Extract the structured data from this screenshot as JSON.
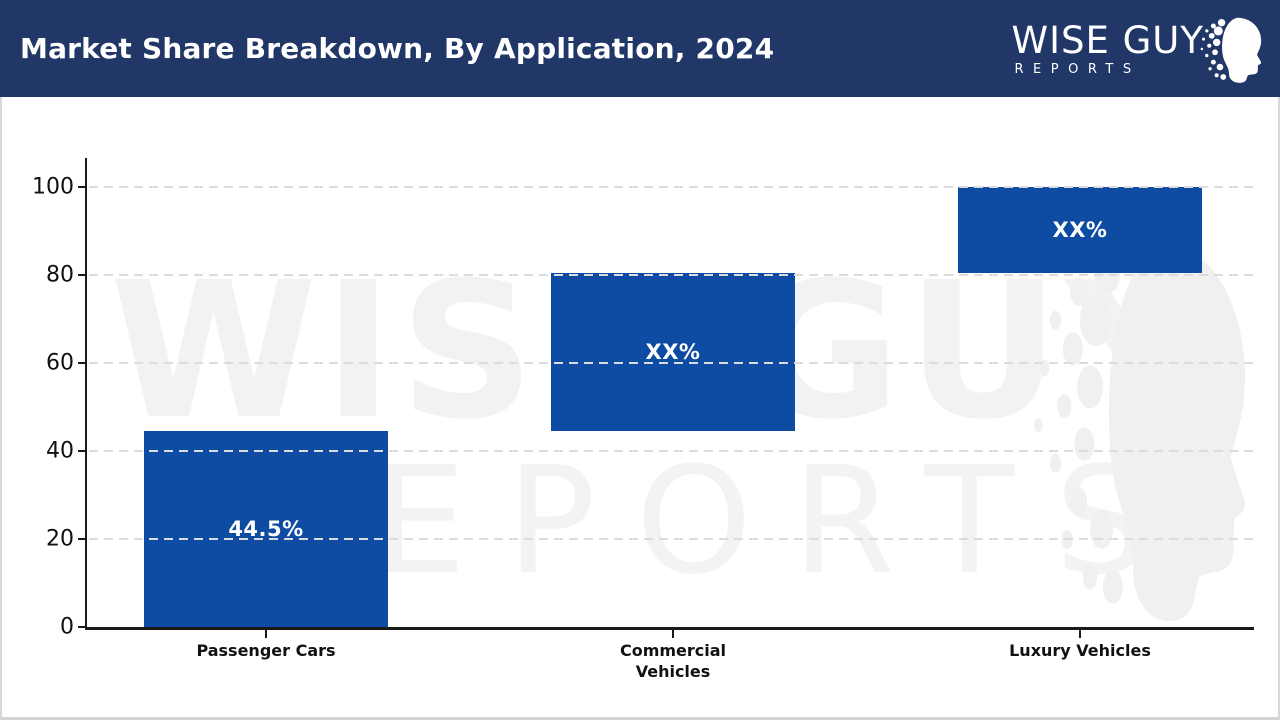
{
  "header": {
    "title": "Market Share Breakdown, By Application, 2024",
    "bg_color": "#203767",
    "logo": {
      "line1": "WISE GUY",
      "line2": "REPORTS"
    }
  },
  "watermark": {
    "line1": "WISE GUY",
    "line2": "REPORTS"
  },
  "chart_data": {
    "type": "bar",
    "subtype": "floating-segment-column",
    "title": "Market Share Breakdown, By Application, 2024",
    "categories": [
      "Passenger Cars",
      "Commercial\nVehicles",
      "Luxury Vehicles"
    ],
    "segments": [
      {
        "category": "Passenger Cars",
        "start": 0,
        "end": 44.5,
        "label": "44.5%"
      },
      {
        "category": "Commercial Vehicles",
        "start": 44.5,
        "end": 80.5,
        "label": "XX%"
      },
      {
        "category": "Luxury Vehicles",
        "start": 80.5,
        "end": 100,
        "label": "XX%"
      }
    ],
    "y_ticks": [
      0,
      20,
      40,
      60,
      80,
      100
    ],
    "ylim": [
      0,
      106.5
    ],
    "xlabel": "",
    "ylabel": "",
    "grid": "horizontal-dashed",
    "legend": "none",
    "bar_color": "#0d4ca2",
    "bar_label_color": "#ffffff",
    "axis_color": "#1a1a1a",
    "gridline_color": "#dcdcdc"
  }
}
